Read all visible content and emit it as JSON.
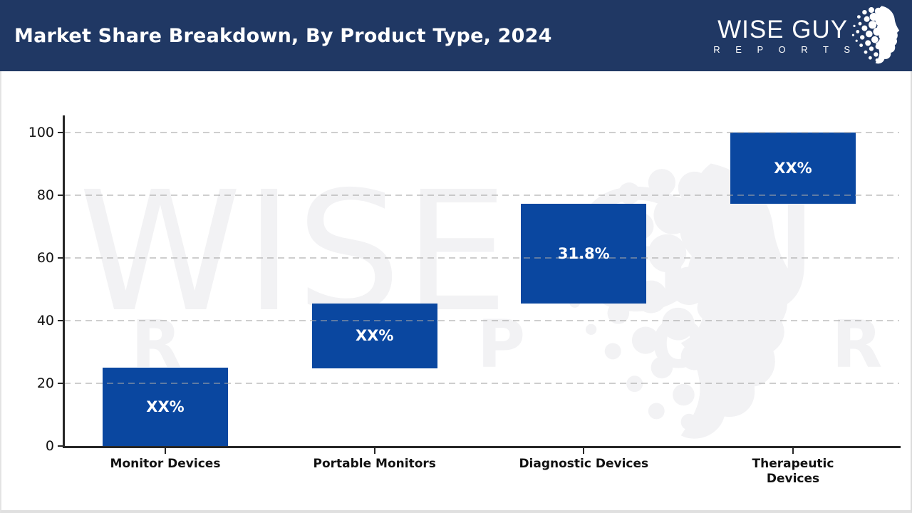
{
  "header": {
    "title": "Market Share Breakdown, By Product Type, 2024",
    "bg_color": "#203864",
    "logo": {
      "name": "WISE GUY",
      "sub": "R E P O R T S"
    }
  },
  "watermark": {
    "line1": "WISE GU",
    "line2": "R E P O R T S"
  },
  "chart_data": {
    "type": "bar",
    "subtype": "floating-waterfall",
    "title": "Market Share Breakdown, By Product Type, 2024",
    "categories": [
      "Monitor Devices",
      "Portable Monitors",
      "Diagnostic Devices",
      "Therapeutic\nDevices"
    ],
    "segments": [
      {
        "category": "Monitor Devices",
        "start": 0,
        "end": 25,
        "label": "XX%"
      },
      {
        "category": "Portable Monitors",
        "start": 24.8,
        "end": 45.5,
        "label": "XX%"
      },
      {
        "category": "Diagnostic Devices",
        "start": 45.5,
        "end": 77.3,
        "label": "31.8%"
      },
      {
        "category": "Therapeutic Devices",
        "start": 77.3,
        "end": 100,
        "label": "XX%"
      }
    ],
    "y_ticks": [
      0,
      20,
      40,
      60,
      80,
      100
    ],
    "ylim": [
      0,
      100
    ],
    "xlabel": "",
    "ylabel": "",
    "bar_color": "#0a47a0",
    "grid": "horizontal-dashed-over-bars",
    "legend": "none"
  }
}
